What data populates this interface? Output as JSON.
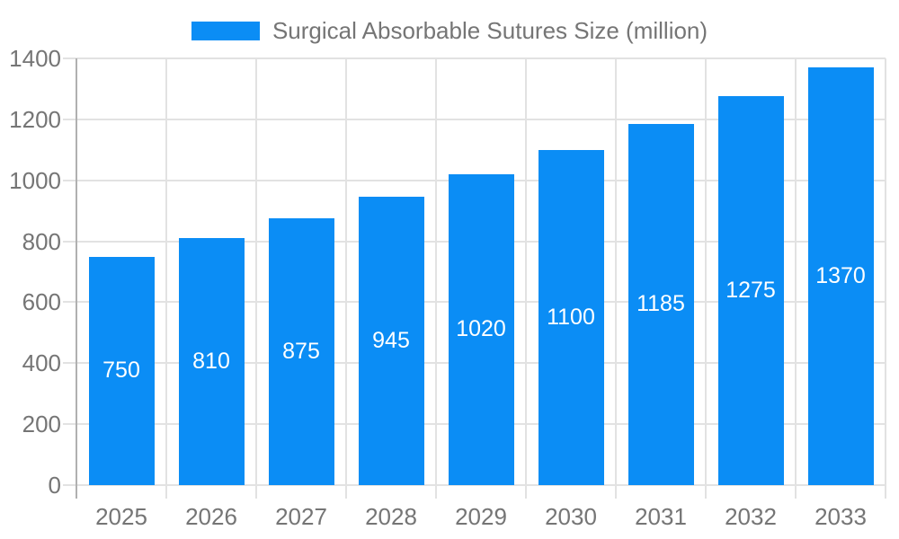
{
  "chart_data": {
    "type": "bar",
    "title": "",
    "legend": "Surgical Absorbable Sutures Size (million)",
    "legend_position": "top",
    "categories": [
      "2025",
      "2026",
      "2027",
      "2028",
      "2029",
      "2030",
      "2031",
      "2032",
      "2033"
    ],
    "values": [
      750,
      810,
      875,
      945,
      1020,
      1100,
      1185,
      1275,
      1370
    ],
    "xlabel": "",
    "ylabel": "",
    "ylim": [
      0,
      1400
    ],
    "yticks": [
      0,
      200,
      400,
      600,
      800,
      1000,
      1200,
      1400
    ],
    "grid": true,
    "colors": {
      "bar": "#0b8df5",
      "bar_label": "#ffffff",
      "axis_text": "#757575",
      "grid_line": "#e2e2e2",
      "axis_line": "#b0b0b0",
      "background": "#ffffff"
    }
  }
}
